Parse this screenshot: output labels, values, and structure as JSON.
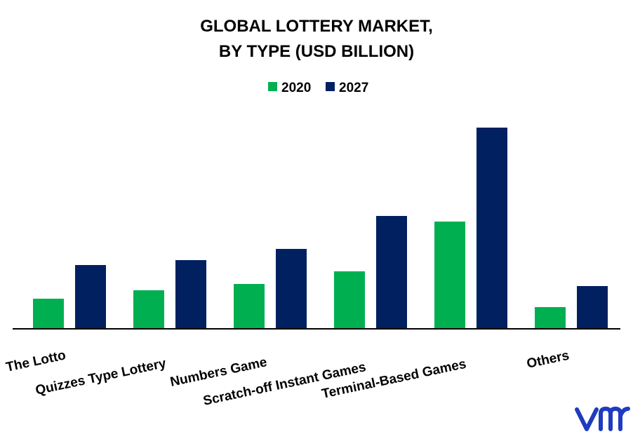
{
  "chart_data": {
    "type": "bar",
    "title_lines": [
      "GLOBAL LOTTERY MARKET,",
      "BY TYPE (USD BILLION)"
    ],
    "categories": [
      "The Lotto",
      "Quizzes Type Lottery",
      "Numbers Game",
      "Scratch-off Instant Games",
      "Terminal-Based Games",
      "Others"
    ],
    "series": [
      {
        "name": "2020",
        "color": "#00b050",
        "values": [
          43,
          55,
          64,
          82,
          153,
          31
        ]
      },
      {
        "name": "2027",
        "color": "#002060",
        "values": [
          91,
          98,
          114,
          161,
          287,
          61
        ]
      }
    ],
    "ylim": [
      0,
      300
    ],
    "grid": false,
    "legend_position": "top-center",
    "xlabel": "",
    "ylabel": ""
  },
  "logo": {
    "text": "vmr",
    "color": "#1f3bbf",
    "icon": "vmr-logo"
  }
}
